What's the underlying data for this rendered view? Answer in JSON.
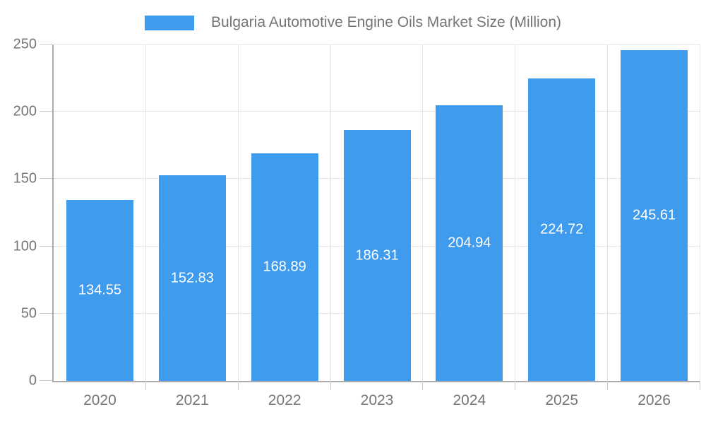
{
  "chart_data": {
    "type": "bar",
    "title": "Bulgaria Automotive Engine Oils Market Size (Million)",
    "legend": {
      "position": "top",
      "entries": [
        "Bulgaria Automotive Engine Oils Market Size (Million)"
      ]
    },
    "categories": [
      "2020",
      "2021",
      "2022",
      "2023",
      "2024",
      "2025",
      "2026"
    ],
    "series": [
      {
        "name": "Bulgaria Automotive Engine Oils Market Size (Million)",
        "values": [
          134.55,
          152.83,
          168.89,
          186.31,
          204.94,
          224.72,
          245.61
        ]
      }
    ],
    "value_labels": [
      "134.55",
      "152.83",
      "168.89",
      "186.31",
      "204.94",
      "224.72",
      "245.61"
    ],
    "xlabel": "",
    "ylabel": "",
    "ylim": [
      0,
      250
    ],
    "yticks": [
      0,
      50,
      100,
      150,
      200,
      250
    ],
    "grid": true,
    "colors": {
      "bar": "#3E9BEE",
      "value_label": "#FFFFFF",
      "axis_text": "#757575",
      "grid_line": "#E5E5E5",
      "axis_line": "#ABABAB",
      "tick_mark": "#C8C8C8",
      "background": "#FFFFFF"
    }
  }
}
